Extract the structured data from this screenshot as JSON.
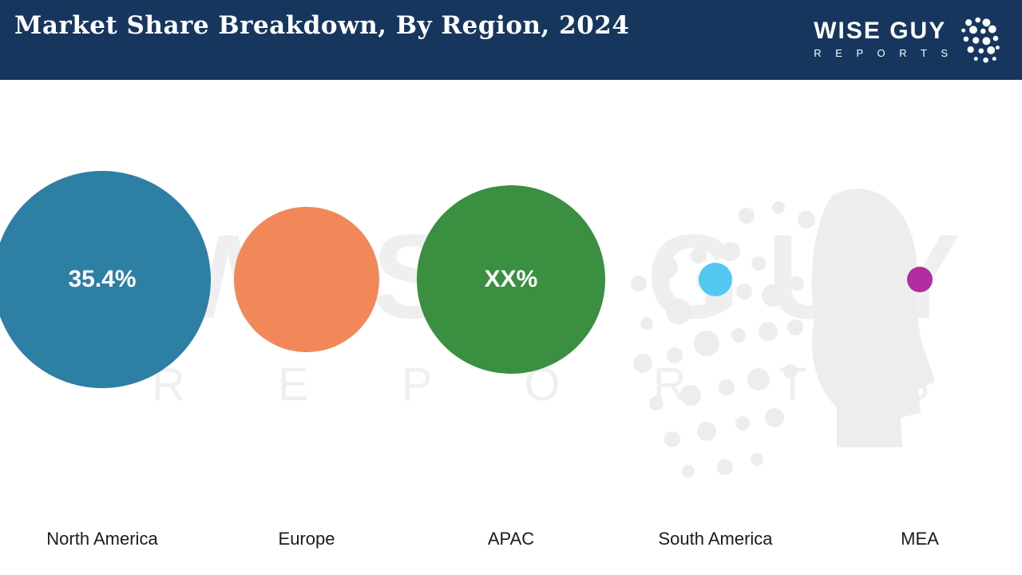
{
  "header": {
    "title": "Market Share Breakdown, By Region, 2024",
    "bg_color": "#16365e",
    "logo": {
      "line1": "WISE GUY",
      "line2": "R E P O R T S"
    }
  },
  "watermark": {
    "line1": "WISE GUY",
    "line2": "R E P O R T S"
  },
  "chart_data": {
    "type": "bubble",
    "title": "Market Share Breakdown, By Region, 2024",
    "categories": [
      "North America",
      "Europe",
      "APAC",
      "South America",
      "MEA"
    ],
    "values": [
      35.4,
      null,
      null,
      null,
      null
    ],
    "value_labels": [
      "35.4%",
      "",
      "XX%",
      "",
      ""
    ],
    "legend_position": "bottom",
    "grid": false,
    "bubbles": [
      {
        "color": "#2d7fa3",
        "diameter": 272
      },
      {
        "color": "#f28859",
        "diameter": 182
      },
      {
        "color": "#3a8f41",
        "diameter": 236
      },
      {
        "color": "#54c6f2",
        "diameter": 42
      },
      {
        "color": "#b02da0",
        "diameter": 32
      }
    ]
  }
}
